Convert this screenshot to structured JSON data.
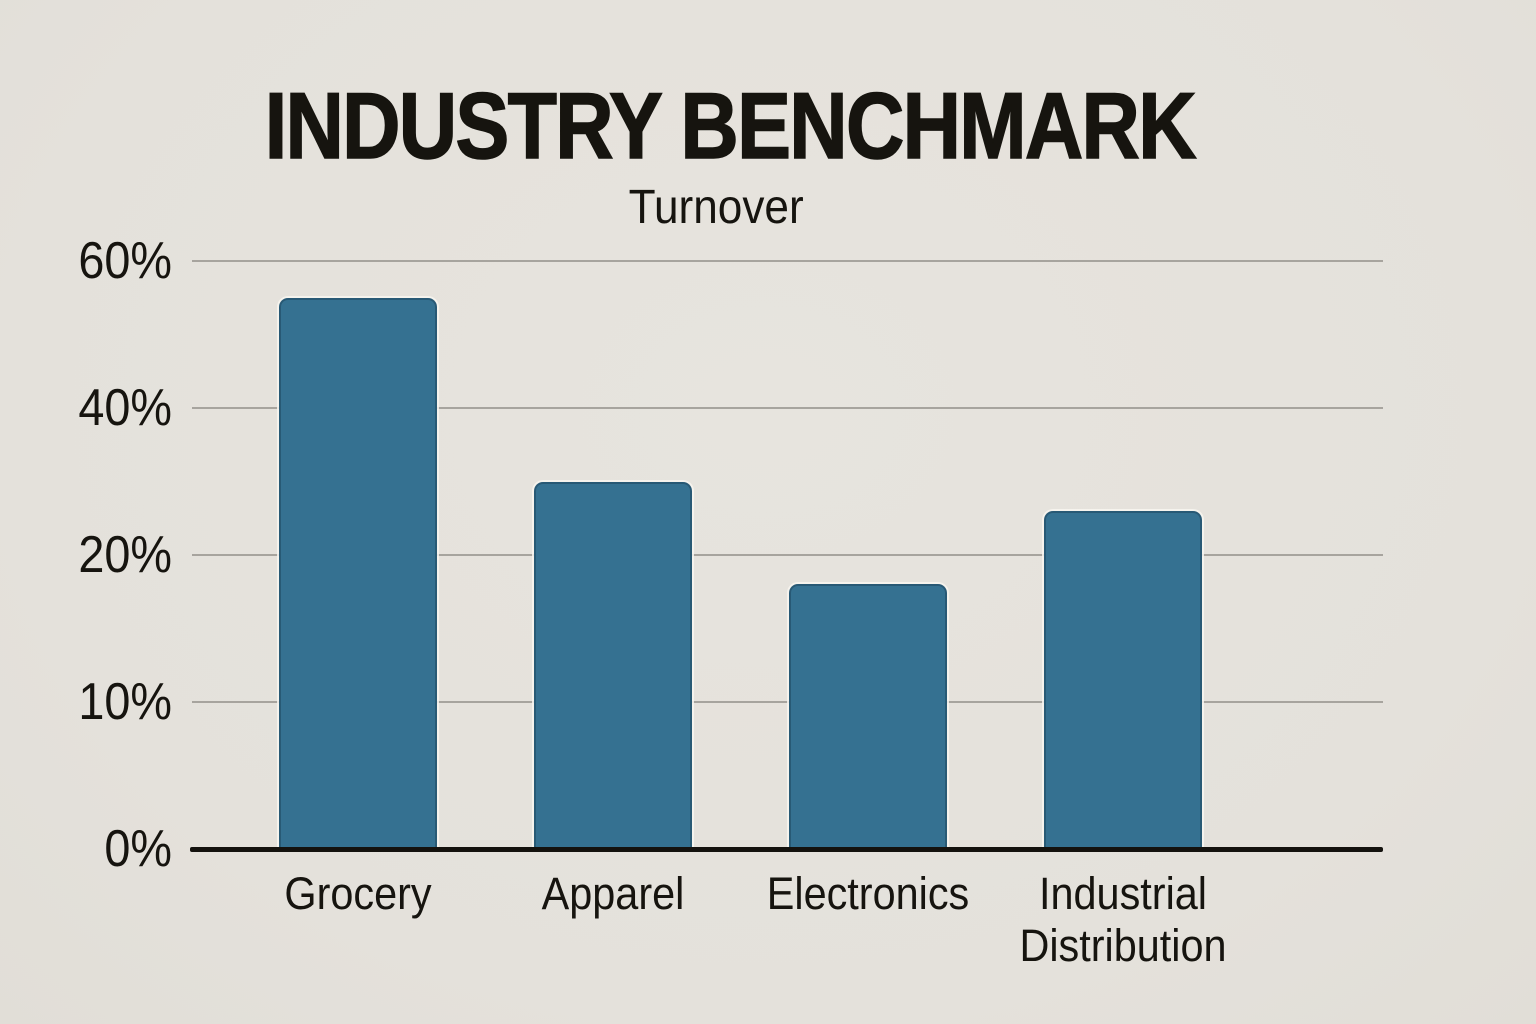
{
  "chart_data": {
    "type": "bar",
    "title": "INDUSTRY BENCHMARK",
    "subtitle": "Turnover",
    "categories": [
      "Grocery",
      "Apparel",
      "Electronics",
      "Industrial Distribution"
    ],
    "values": [
      55,
      30,
      18,
      26
    ],
    "unit": "%",
    "y_ticks": [
      {
        "value": 0,
        "label": "0%"
      },
      {
        "value": 10,
        "label": "10%"
      },
      {
        "value": 20,
        "label": "20%"
      },
      {
        "value": 40,
        "label": "40%"
      },
      {
        "value": 60,
        "label": "60%"
      }
    ],
    "y_scale": "ticks-equally-spaced",
    "grid": true,
    "legend": false,
    "bar_color": "#357191",
    "background_color": "#e5e2dc",
    "text_color": "#16140f",
    "gridline_color": "#a7a49e",
    "axis_color": "#14120e"
  }
}
